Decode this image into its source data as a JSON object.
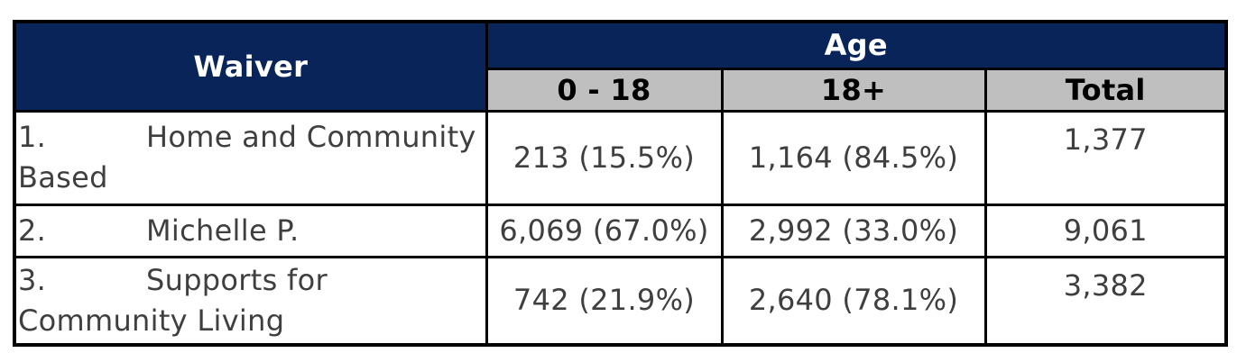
{
  "table": {
    "header": {
      "waiver_label": "Waiver",
      "age_label": "Age",
      "columns": [
        "0 - 18",
        "18+",
        "Total"
      ]
    },
    "rows": [
      {
        "num": "1.",
        "name": "Home and Community Based",
        "age_0_18": "213 (15.5%)",
        "age_18_plus": "1,164 (84.5%)",
        "total": "1,377"
      },
      {
        "num": "2.",
        "name": "Michelle P.",
        "age_0_18": "6,069 (67.0%)",
        "age_18_plus": "2,992 (33.0%)",
        "total": "9,061"
      },
      {
        "num": "3.",
        "name": "Supports for Community Living",
        "age_0_18": "742 (21.9%)",
        "age_18_plus": "2,640 (78.1%)",
        "total": "3,382"
      }
    ],
    "colors": {
      "header_navy": "#082459",
      "subheader_gray": "#BFBFBF",
      "border_black": "#000000",
      "body_text": "#3F3F3F",
      "header_text_light": "#FFFFFF",
      "header_text_dark": "#000000"
    }
  }
}
